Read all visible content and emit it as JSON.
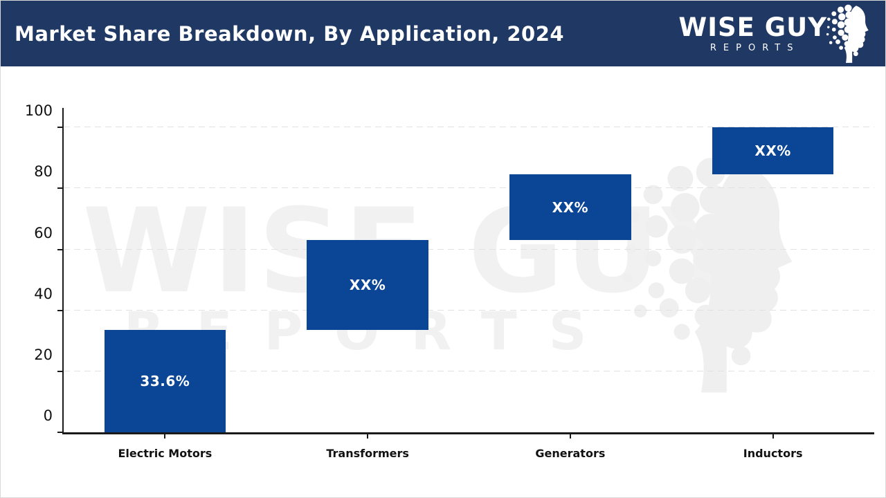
{
  "header": {
    "title": "Market Share Breakdown, By Application, 2024",
    "background_color": "#203864",
    "brand": {
      "name": "WISE GUY",
      "sub": "REPORTS"
    }
  },
  "watermark": {
    "line1": "WISE GUY",
    "line2": "REPORTS"
  },
  "chart_data": {
    "type": "bar",
    "subtype": "waterfall-floating",
    "title": "Market Share Breakdown, By Application, 2024",
    "categories": [
      "Electric Motors",
      "Transformers",
      "Generators",
      "Inductors"
    ],
    "segments": [
      {
        "category": "Electric Motors",
        "start": 0,
        "end": 33.6,
        "label": "33.6%"
      },
      {
        "category": "Transformers",
        "start": 33.6,
        "end": 63.0,
        "label": "XX%"
      },
      {
        "category": "Generators",
        "start": 63.0,
        "end": 84.6,
        "label": "XX%"
      },
      {
        "category": "Inductors",
        "start": 84.6,
        "end": 100.0,
        "label": "XX%"
      }
    ],
    "xlabel": "",
    "ylabel": "",
    "yticks": [
      0,
      20,
      40,
      60,
      80,
      100
    ],
    "ylim": [
      0,
      106.4
    ],
    "grid": "dashed-horizontal",
    "legend": "none",
    "bar_color": "#0b4596",
    "bar_label_color": "#ffffff",
    "axis_color": "#1a1a1a",
    "gridline_color": "#e2e2e2"
  }
}
